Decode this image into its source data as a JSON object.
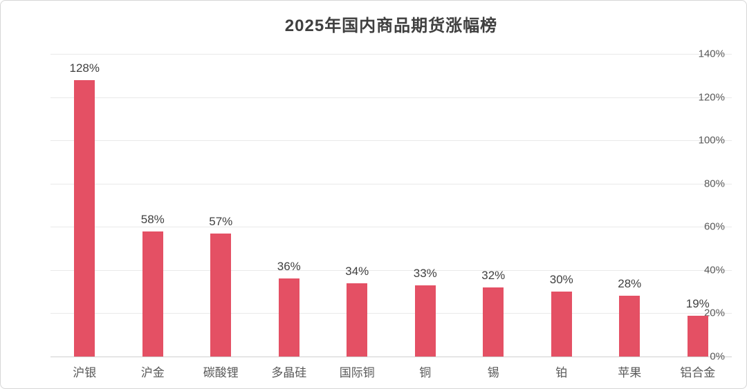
{
  "chart_data": {
    "type": "bar",
    "title": "2025年国内商品期货涨幅榜",
    "categories": [
      "沪银",
      "沪金",
      "碳酸锂",
      "多晶硅",
      "国际铜",
      "铜",
      "锡",
      "铂",
      "苹果",
      "铝合金"
    ],
    "values": [
      128,
      58,
      57,
      36,
      34,
      33,
      32,
      30,
      28,
      19
    ],
    "data_labels": [
      "128%",
      "58%",
      "57%",
      "36%",
      "34%",
      "33%",
      "32%",
      "30%",
      "28%",
      "19%"
    ],
    "xlabel": "",
    "ylabel": "",
    "ylim": [
      0,
      140
    ],
    "ytick_step": 20,
    "ytick_labels": [
      "0%",
      "20%",
      "40%",
      "60%",
      "80%",
      "100%",
      "120%",
      "140%"
    ],
    "grid": true,
    "legend": "none",
    "colors": {
      "bar": "#e45064",
      "title_text": "#3f3f3f",
      "axis_text": "#595959",
      "data_label_text": "#404040",
      "gridline": "#e9e9e9",
      "axis_line": "#cfcfcf",
      "frame_border": "#d6d6d6",
      "background": "#ffffff"
    }
  }
}
